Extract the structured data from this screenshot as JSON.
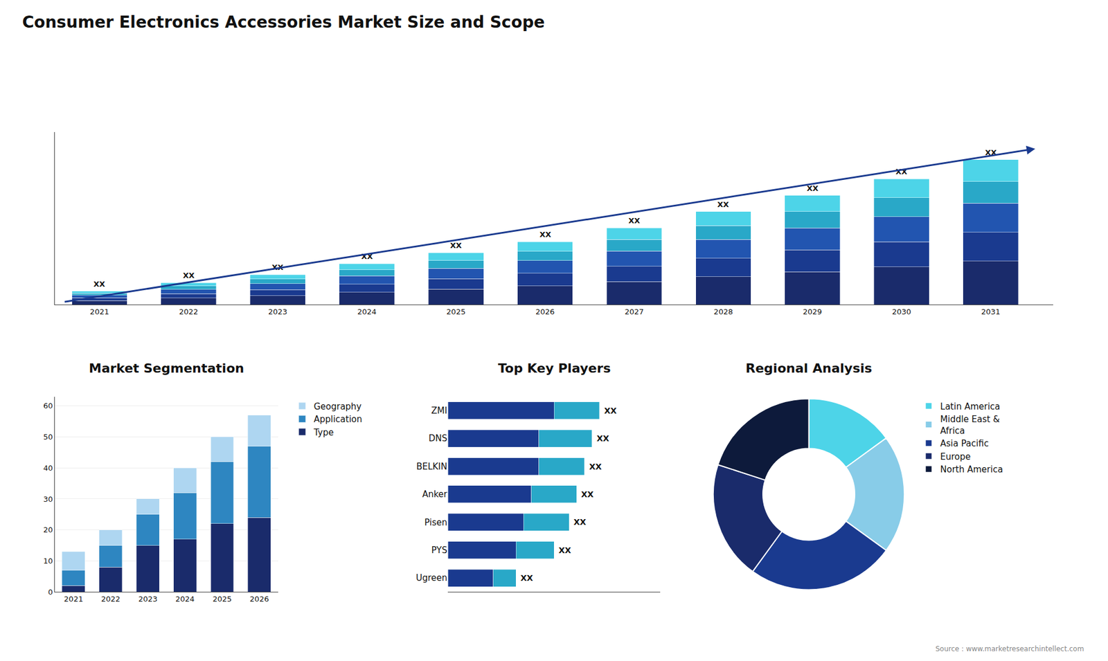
{
  "chart_data": [
    {
      "type": "bar",
      "title": "Consumer Electronics Accessories Market Size and Scope",
      "stacked": true,
      "categories": [
        "2021",
        "2022",
        "2023",
        "2024",
        "2025",
        "2026",
        "2027",
        "2028",
        "2029",
        "2030",
        "2031"
      ],
      "series": [
        {
          "color": "#1a2b6b",
          "values": [
            1.5,
            2.4,
            3.3,
            4.5,
            5.7,
            6.9,
            8.4,
            10.2,
            12,
            13.8,
            15.9
          ]
        },
        {
          "color": "#1a3a8f",
          "values": [
            1,
            1.6,
            2.2,
            3,
            3.8,
            4.6,
            5.6,
            6.8,
            8,
            9.2,
            10.6
          ]
        },
        {
          "color": "#2255b0",
          "values": [
            1,
            1.6,
            2.2,
            3,
            3.8,
            4.6,
            5.6,
            6.8,
            8,
            9.2,
            10.6
          ]
        },
        {
          "color": "#29a8c8",
          "values": [
            0.75,
            1.2,
            1.65,
            2.25,
            2.85,
            3.45,
            4.2,
            5.1,
            6,
            6.9,
            7.95
          ]
        },
        {
          "color": "#4dd4e8",
          "values": [
            0.75,
            1.2,
            1.65,
            2.25,
            2.85,
            3.45,
            4.2,
            5.1,
            6,
            6.9,
            7.95
          ]
        }
      ],
      "ylim": [
        0,
        63
      ],
      "yticks": [],
      "tick_labels": "x",
      "grid": false,
      "annotations": [
        {
          "category": "2021",
          "text": "XX"
        },
        {
          "category": "2022",
          "text": "XX"
        },
        {
          "category": "2023",
          "text": "XX"
        },
        {
          "category": "2024",
          "text": "XX"
        },
        {
          "category": "2025",
          "text": "XX"
        },
        {
          "category": "2026",
          "text": "XX"
        },
        {
          "category": "2027",
          "text": "XX"
        },
        {
          "category": "2028",
          "text": "XX"
        },
        {
          "category": "2029",
          "text": "XX"
        },
        {
          "category": "2030",
          "text": "XX"
        },
        {
          "category": "2031",
          "text": "XX"
        },
        {
          "arrow": [
            1,
            57
          ],
          "color": "#1a3a8f"
        }
      ]
    },
    {
      "type": "bar",
      "title": "Market Segmentation",
      "stacked": true,
      "categories": [
        "2021",
        "2022",
        "2023",
        "2024",
        "2025",
        "2026"
      ],
      "series": [
        {
          "name": "Type",
          "color": "#1a2b6b",
          "values": [
            2,
            8,
            15,
            17,
            22,
            24
          ]
        },
        {
          "name": "Application",
          "color": "#2e86c1",
          "values": [
            5,
            7,
            10,
            15,
            20,
            23
          ]
        },
        {
          "name": "Geography",
          "color": "#aed6f1",
          "values": [
            6,
            5,
            5,
            8,
            8,
            10
          ]
        }
      ],
      "ylim": [
        0,
        63
      ],
      "yticks": [
        0,
        10,
        20,
        30,
        40,
        50,
        60
      ],
      "grid": true,
      "legend": "right"
    },
    {
      "type": "bar",
      "title": "Top Key Players",
      "orientation": "horizontal",
      "stacked": true,
      "categories": [
        "ZMI",
        "DNS",
        "BELKIN",
        "Anker",
        "Pisen",
        "PYS",
        "Ugreen"
      ],
      "series": [
        {
          "color": "#1a3a8f",
          "values": [
            7,
            6,
            6,
            5.5,
            5,
            4.5,
            3
          ]
        },
        {
          "color": "#29a8c8",
          "values": [
            3,
            3.5,
            3,
            3,
            3,
            2.5,
            1.5
          ]
        }
      ],
      "xlim": [
        0,
        14
      ],
      "xticks": [],
      "tick_labels": "y",
      "grid": false,
      "annotations": [
        {
          "category": "ZMI",
          "text": "XX"
        },
        {
          "category": "DNS",
          "text": "XX"
        },
        {
          "category": "BELKIN",
          "text": "XX"
        },
        {
          "category": "Anker",
          "text": "XX"
        },
        {
          "category": "Pisen",
          "text": "XX"
        },
        {
          "category": "PYS",
          "text": "XX"
        },
        {
          "category": "Ugreen",
          "text": "XX"
        }
      ]
    },
    {
      "type": "pie",
      "title": "Regional Analysis",
      "categories": [
        "Latin America",
        "Middle East &\nAfrica",
        "Asia Pacific",
        "Europe",
        "North America"
      ],
      "values": [
        15,
        20,
        25,
        20,
        20
      ],
      "colors": [
        "#4dd4e8",
        "#88cce8",
        "#1a3a8f",
        "#1a2b6b",
        "#0d1a3b"
      ],
      "data_labels": false,
      "legend": "right",
      "annotations": [
        {
          "text": "Source : www.marketresearchintellect.com"
        }
      ]
    }
  ]
}
